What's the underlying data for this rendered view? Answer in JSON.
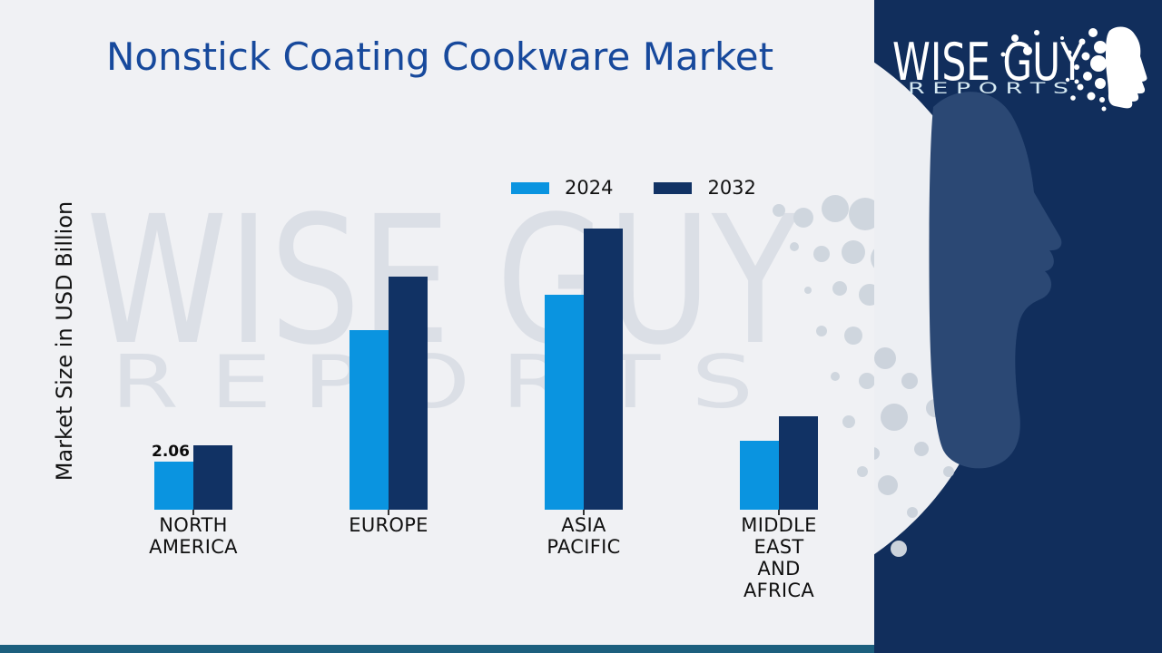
{
  "title": {
    "text": "Nonstick Coating Cookware Market",
    "color": "#17499c"
  },
  "watermark": {
    "line1": "WISE GUY",
    "line2": "R E P O R T S"
  },
  "logo": {
    "line1": "WISE GUY",
    "line2": "R E P O R T S"
  },
  "colors": {
    "background": "#f0f1f4",
    "bar_2024": "#0a94e0",
    "bar_2032": "#113264",
    "right_panel": "#112e5c",
    "panel_circle": "#edeff3",
    "panel_face": "#2b4874",
    "accent_bottom_bar": "#1c5f7e",
    "watermark_text": "#dbdfe6",
    "watermark_dots": "#cfd6de",
    "title_blue": "#17499c"
  },
  "chart_data": {
    "type": "bar",
    "title": "Nonstick Coating Cookware Market",
    "xlabel": "",
    "ylabel": "Market Size in USD Billion",
    "unit": "USD Billion",
    "grid": false,
    "legend_position": "top-center",
    "ylim": [
      0,
      13
    ],
    "categories": [
      "NORTH AMERICA",
      "EUROPE",
      "ASIA PACIFIC",
      "MIDDLE EAST AND AFRICA"
    ],
    "category_label_lines": [
      [
        "NORTH",
        "AMERICA"
      ],
      [
        "EUROPE"
      ],
      [
        "ASIA",
        "PACIFIC"
      ],
      [
        "MIDDLE",
        "EAST",
        "AND",
        "AFRICA"
      ]
    ],
    "series": [
      {
        "name": "2024",
        "color": "#0a94e0",
        "values": [
          2.06,
          7.7,
          9.2,
          2.95
        ]
      },
      {
        "name": "2032",
        "color": "#113264",
        "values": [
          2.76,
          10.0,
          12.05,
          4.0
        ]
      }
    ],
    "data_labels": [
      {
        "category": "NORTH AMERICA",
        "series": "2024",
        "text": "2.06"
      }
    ]
  }
}
